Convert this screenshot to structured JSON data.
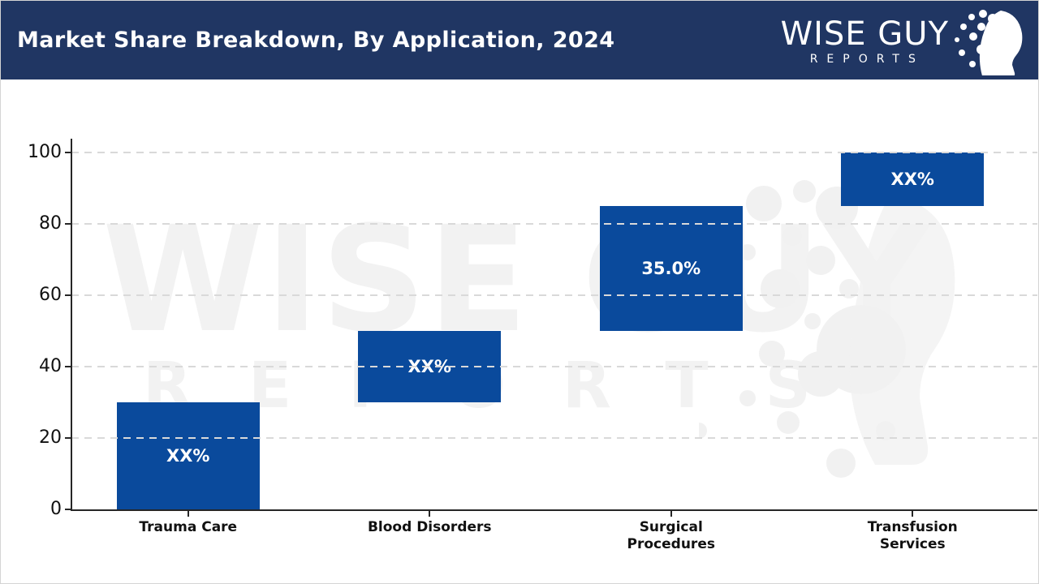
{
  "header": {
    "title": "Market Share Breakdown, By Application, 2024",
    "logo": {
      "line1": "WISE GUY",
      "line2": "REPORTS"
    }
  },
  "watermark": {
    "line1": "WISE GUY",
    "line2": "REPORTS"
  },
  "colors": {
    "header_bg": "#203663",
    "bar": "#0a4a9c",
    "bar_label": "#ffffff",
    "gridline": "#d9d9d9",
    "axis": "#262626",
    "watermark": "#f2f2f2"
  },
  "chart_data": {
    "type": "bar",
    "variant": "floating-range-waterfall",
    "title": "Market Share Breakdown, By Application, 2024",
    "xlabel": "",
    "ylabel": "",
    "categories": [
      "Trauma Care",
      "Blood Disorders",
      "Surgical Procedures",
      "Transfusion Services"
    ],
    "segments": [
      {
        "category": "Trauma Care",
        "start": 0,
        "end": 30,
        "label": "XX%"
      },
      {
        "category": "Blood Disorders",
        "start": 30,
        "end": 50,
        "label": "XX%"
      },
      {
        "category": "Surgical Procedures",
        "start": 50,
        "end": 85,
        "label": "35.0%"
      },
      {
        "category": "Transfusion Services",
        "start": 85,
        "end": 100,
        "label": "XX%"
      }
    ],
    "ylim": [
      0,
      100
    ],
    "yticks": [
      0,
      20,
      40,
      60,
      80,
      100
    ],
    "grid": "horizontal-dashed",
    "legend": "none"
  }
}
